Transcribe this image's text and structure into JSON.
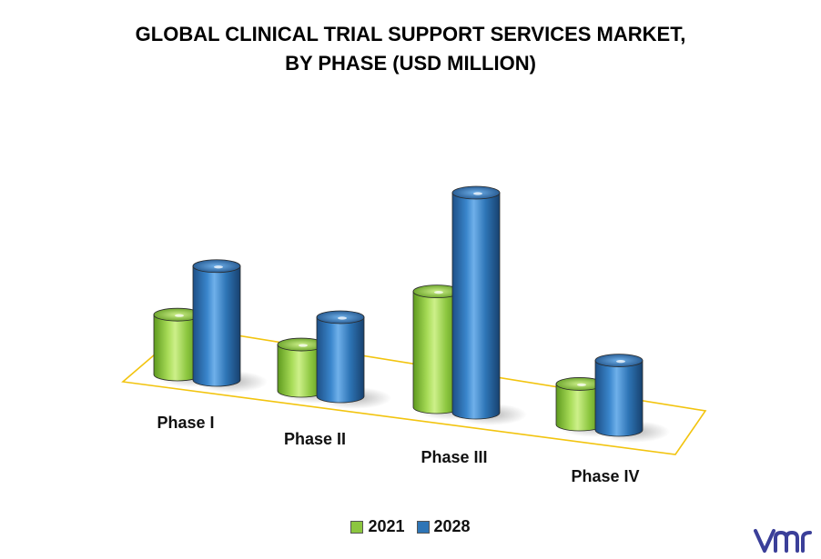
{
  "chart_data": {
    "type": "bar",
    "title": [
      "GLOBAL CLINICAL TRIAL SUPPORT SERVICES MARKET,",
      "BY PHASE (USD MILLION)"
    ],
    "categories": [
      "Phase I",
      "Phase II",
      "Phase III",
      "Phase IV"
    ],
    "series": [
      {
        "name": "2021",
        "color": "#8cc63f",
        "values": [
          62,
          48,
          120,
          42
        ]
      },
      {
        "name": "2028",
        "color": "#2e75b6",
        "values": [
          118,
          82,
          228,
          72
        ]
      }
    ],
    "ylim": [
      0,
      250
    ],
    "grid": false,
    "legend": "bottom",
    "style": "3d-cylinder"
  },
  "brand": {
    "logo_icon": "vmr-logo-icon",
    "color": "#3b3f99"
  }
}
